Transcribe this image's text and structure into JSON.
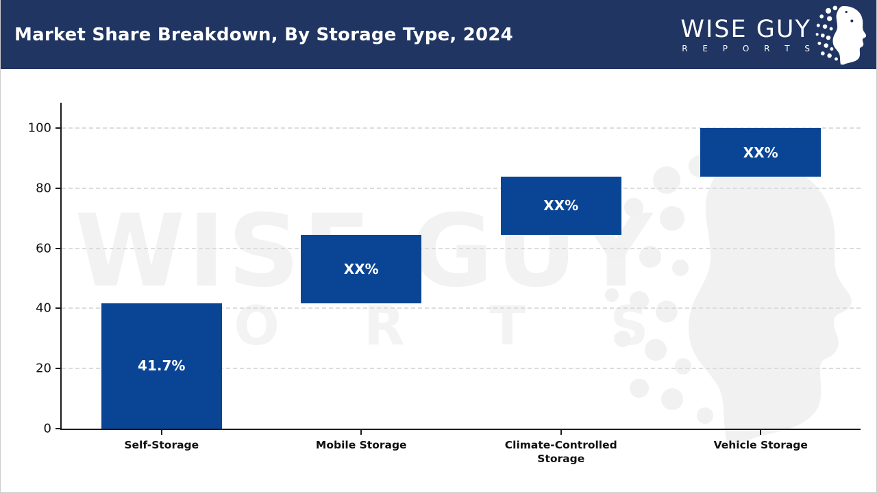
{
  "header": {
    "title": "Market Share Breakdown, By Storage Type, 2024",
    "background_color": "#203562",
    "logo": {
      "line1": "WISE GUY",
      "line2": "R E P O R T S"
    }
  },
  "watermark": {
    "line1": "WISE GUY",
    "line2": "P O R T S"
  },
  "chart_data": {
    "type": "bar",
    "subtype": "waterfall-floating-bars",
    "title": "Market Share Breakdown, By Storage Type, 2024",
    "categories": [
      "Self-Storage",
      "Mobile Storage",
      "Climate-Controlled Storage",
      "Vehicle Storage"
    ],
    "segments": [
      {
        "category": "Self-Storage",
        "start": 0,
        "end": 41.7,
        "label": "41.7%"
      },
      {
        "category": "Mobile Storage",
        "start": 41.7,
        "end": 64.5,
        "label": "XX%"
      },
      {
        "category": "Climate-Controlled Storage",
        "start": 64.5,
        "end": 83.8,
        "label": "XX%"
      },
      {
        "category": "Vehicle Storage",
        "start": 83.8,
        "end": 100,
        "label": "XX%"
      }
    ],
    "xlabel": "",
    "ylabel": "",
    "ylim": [
      0,
      100
    ],
    "yticks": [
      0,
      20,
      40,
      60,
      80,
      100
    ],
    "grid": "horizontal-dashed",
    "legend": "none",
    "bar_color": "#0a4595",
    "bar_label_color": "#ffffff",
    "gridline_color": "#dcdcdc",
    "axis_color": "#1a1a1a"
  }
}
